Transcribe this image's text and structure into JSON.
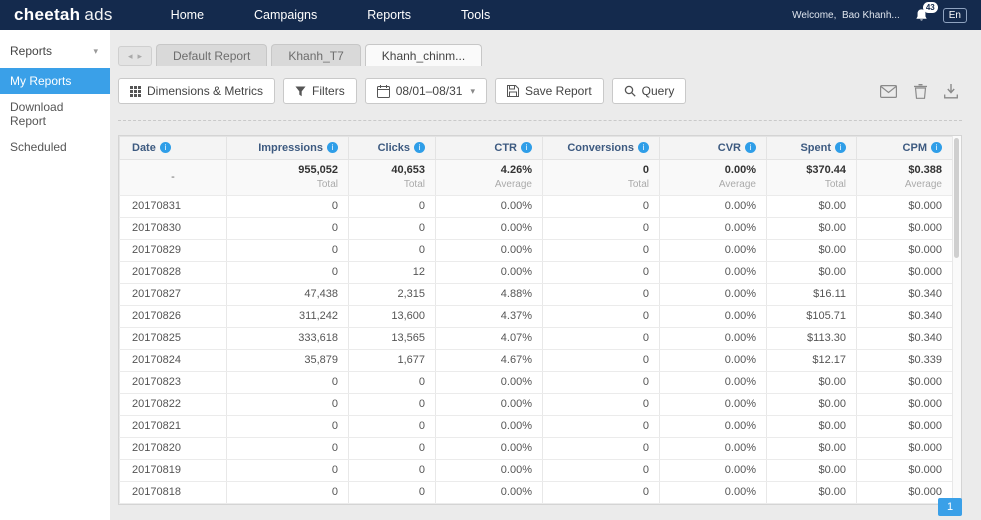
{
  "colors": {
    "navbar_bg": "#142a4d",
    "accent_blue": "#3aa0e8",
    "info_icon_blue": "#2f9ee8"
  },
  "navbar": {
    "brand_bold": "cheetah",
    "brand_light": "ads",
    "items": [
      {
        "label": "Home"
      },
      {
        "label": "Campaigns"
      },
      {
        "label": "Reports"
      },
      {
        "label": "Tools"
      }
    ],
    "welcome": "Welcome,",
    "username": "Bao Khanh...",
    "notification_count": "43",
    "language": "En"
  },
  "sidebar": {
    "section": "Reports",
    "items": [
      {
        "label": "My Reports",
        "active": true
      },
      {
        "label": "Download Report",
        "active": false
      },
      {
        "label": "Scheduled",
        "active": false
      }
    ]
  },
  "tabs": [
    {
      "label": "Default Report",
      "active": false
    },
    {
      "label": "Khanh_T7",
      "active": false
    },
    {
      "label": "Khanh_chinm...",
      "active": true
    }
  ],
  "toolbar": {
    "dimensions_metrics_label": "Dimensions & Metrics",
    "filters_label": "Filters",
    "date_range_label": "08/01–08/31",
    "save_report_label": "Save Report",
    "query_label": "Query"
  },
  "table": {
    "columns": [
      "Date",
      "Impressions",
      "Clicks",
      "CTR",
      "Conversions",
      "CVR",
      "Spent",
      "CPM"
    ],
    "totals": {
      "date": "-",
      "values": [
        "955,052",
        "40,653",
        "4.26%",
        "0",
        "0.00%",
        "$370.44",
        "$0.388"
      ],
      "sublabels": [
        "Total",
        "Total",
        "Average",
        "Total",
        "Average",
        "Total",
        "Average"
      ]
    },
    "rows": [
      [
        "20170831",
        "0",
        "0",
        "0.00%",
        "0",
        "0.00%",
        "$0.00",
        "$0.000"
      ],
      [
        "20170830",
        "0",
        "0",
        "0.00%",
        "0",
        "0.00%",
        "$0.00",
        "$0.000"
      ],
      [
        "20170829",
        "0",
        "0",
        "0.00%",
        "0",
        "0.00%",
        "$0.00",
        "$0.000"
      ],
      [
        "20170828",
        "0",
        "12",
        "0.00%",
        "0",
        "0.00%",
        "$0.00",
        "$0.000"
      ],
      [
        "20170827",
        "47,438",
        "2,315",
        "4.88%",
        "0",
        "0.00%",
        "$16.11",
        "$0.340"
      ],
      [
        "20170826",
        "311,242",
        "13,600",
        "4.37%",
        "0",
        "0.00%",
        "$105.71",
        "$0.340"
      ],
      [
        "20170825",
        "333,618",
        "13,565",
        "4.07%",
        "0",
        "0.00%",
        "$113.30",
        "$0.340"
      ],
      [
        "20170824",
        "35,879",
        "1,677",
        "4.67%",
        "0",
        "0.00%",
        "$12.17",
        "$0.339"
      ],
      [
        "20170823",
        "0",
        "0",
        "0.00%",
        "0",
        "0.00%",
        "$0.00",
        "$0.000"
      ],
      [
        "20170822",
        "0",
        "0",
        "0.00%",
        "0",
        "0.00%",
        "$0.00",
        "$0.000"
      ],
      [
        "20170821",
        "0",
        "0",
        "0.00%",
        "0",
        "0.00%",
        "$0.00",
        "$0.000"
      ],
      [
        "20170820",
        "0",
        "0",
        "0.00%",
        "0",
        "0.00%",
        "$0.00",
        "$0.000"
      ],
      [
        "20170819",
        "0",
        "0",
        "0.00%",
        "0",
        "0.00%",
        "$0.00",
        "$0.000"
      ],
      [
        "20170818",
        "0",
        "0",
        "0.00%",
        "0",
        "0.00%",
        "$0.00",
        "$0.000"
      ]
    ]
  },
  "pagination": {
    "page": "1"
  }
}
